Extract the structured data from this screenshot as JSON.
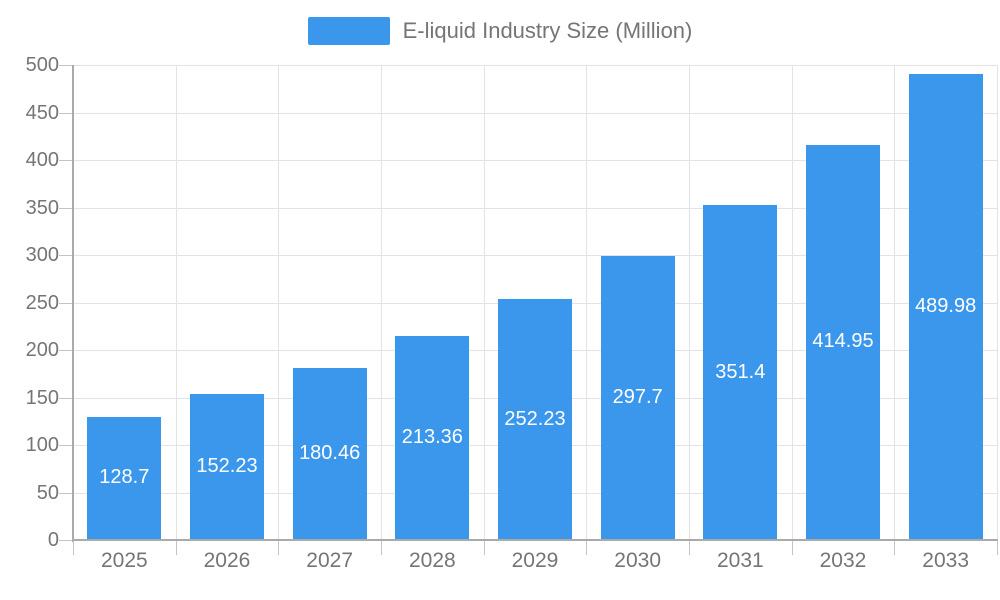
{
  "legend": {
    "label": "E-liquid Industry Size (Million)"
  },
  "chart_data": {
    "type": "bar",
    "title": "E-liquid Industry Size (Million)",
    "categories": [
      "2025",
      "2026",
      "2027",
      "2028",
      "2029",
      "2030",
      "2031",
      "2032",
      "2033"
    ],
    "values": [
      128.7,
      152.23,
      180.46,
      213.36,
      252.23,
      297.7,
      351.4,
      414.95,
      489.98
    ],
    "xlabel": "",
    "ylabel": "",
    "ylim": [
      0,
      500
    ],
    "ytick_step": 50,
    "grid": true,
    "legend_position": "top-center",
    "value_labels": "inside-center",
    "colors": {
      "bar": "#3A97EC",
      "axis_line": "#AAAAAA",
      "gridline": "#E3E3E3",
      "tick": "#C4C4C4",
      "axis_text": "#757575",
      "value_text": "#FFFFFF",
      "background": "#FFFFFF"
    }
  }
}
